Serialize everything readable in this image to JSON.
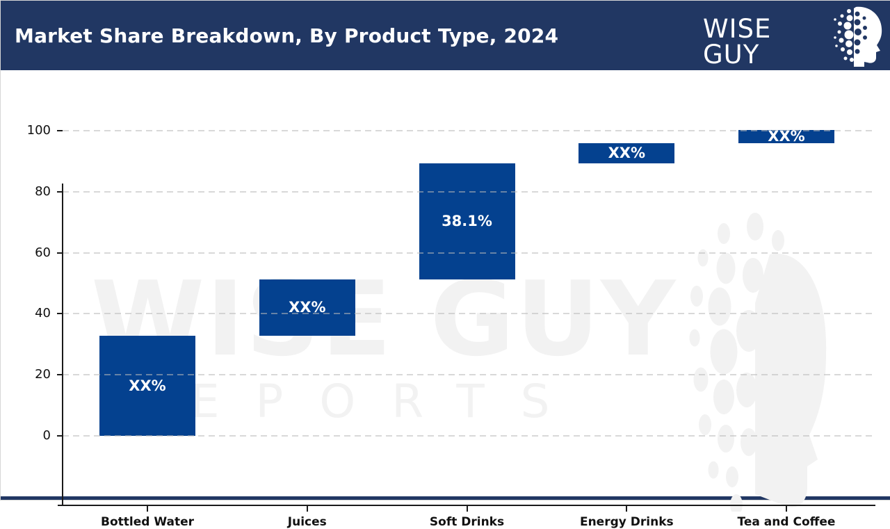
{
  "header": {
    "title": "Market Share Breakdown, By Product Type, 2024",
    "logo": {
      "line1": "WISE GUY",
      "line2": "REPORTS"
    }
  },
  "watermark": {
    "line1": "WISE GUY",
    "line2": "REPORTS"
  },
  "colors": {
    "header_navy": "#213763",
    "bar_blue": "#04418f",
    "watermark_gray": "#f2f2f2",
    "grid_gray": "#dddddd"
  },
  "chart_data": {
    "type": "bar",
    "subtype": "waterfall",
    "title": "Market Share Breakdown, By Product Type, 2024",
    "categories": [
      "Bottled Water",
      "Juices",
      "Soft Drinks",
      "Energy Drinks",
      "Tea and Coffee"
    ],
    "segments": [
      {
        "category": "Bottled Water",
        "start": 0,
        "end": 32.8,
        "label": "XX%"
      },
      {
        "category": "Juices",
        "start": 32.8,
        "end": 51.3,
        "label": "XX%"
      },
      {
        "category": "Soft Drinks",
        "start": 51.3,
        "end": 89.4,
        "label": "38.1%"
      },
      {
        "category": "Energy Drinks",
        "start": 89.4,
        "end": 96.0,
        "label": "XX%"
      },
      {
        "category": "Tea and Coffee",
        "start": 96.0,
        "end": 100.3,
        "label": "XX%"
      }
    ],
    "yticks": [
      0,
      20,
      40,
      60,
      80,
      100
    ],
    "ylim": [
      0,
      105.5
    ],
    "xlabel": "",
    "ylabel": "",
    "grid": "horizontal-dashed-over-bars",
    "legend": false,
    "bar_value_labels_inside": true
  }
}
